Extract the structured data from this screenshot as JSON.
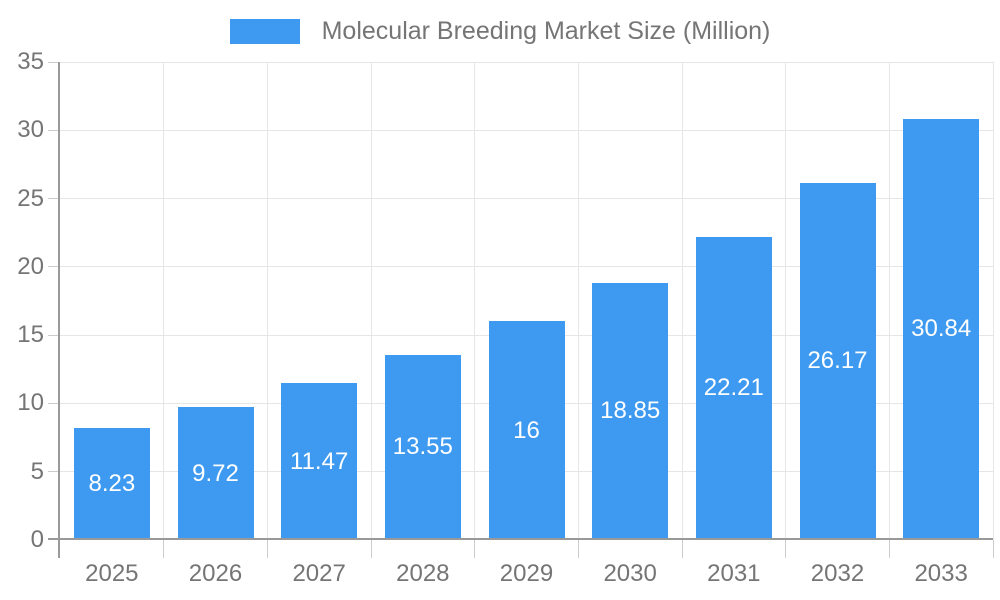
{
  "chart_data": {
    "type": "bar",
    "title": "Molecular Breeding Market Size (Million)",
    "categories": [
      "2025",
      "2026",
      "2027",
      "2028",
      "2029",
      "2030",
      "2031",
      "2032",
      "2033"
    ],
    "values": [
      8.23,
      9.72,
      11.47,
      13.55,
      16,
      18.85,
      22.21,
      26.17,
      30.84
    ],
    "xlabel": "",
    "ylabel": "",
    "ylim": [
      0,
      35
    ],
    "yticks": [
      0,
      5,
      10,
      15,
      20,
      25,
      30,
      35
    ],
    "grid": true,
    "legend_position": "top-center",
    "colors": {
      "bar": "#3E9AF0",
      "bar_value_label": "#FFFFFF",
      "axis_text": "#757575",
      "legend_text": "#757575",
      "axis_line": "#999999",
      "gridline": "#E6E6E6",
      "tick": "#CCCCCC",
      "background": "#FFFFFF"
    }
  }
}
